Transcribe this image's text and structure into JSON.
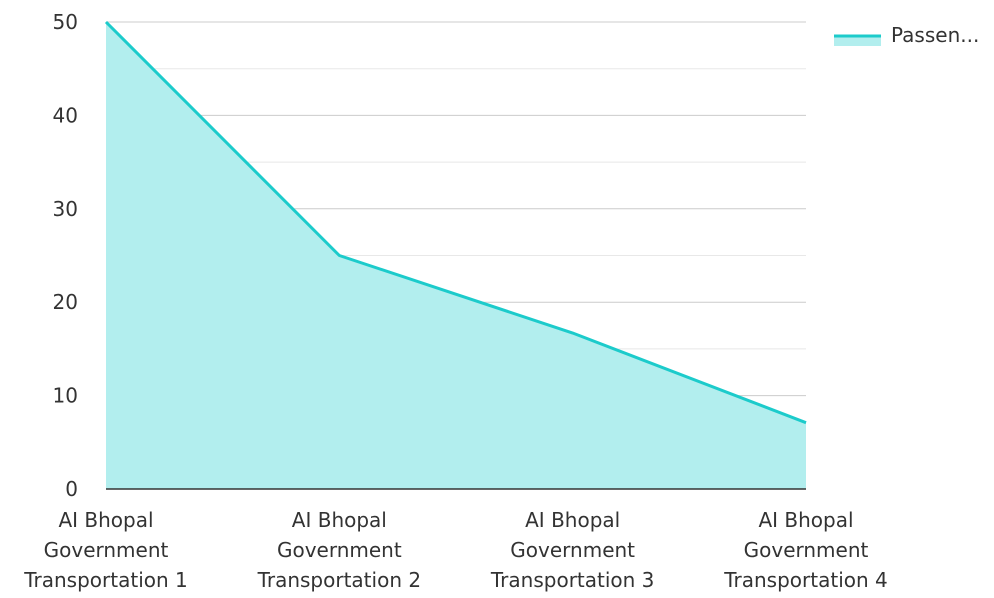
{
  "chart_data": {
    "type": "area",
    "title": "",
    "xlabel": "",
    "ylabel": "",
    "ylim": [
      0,
      50
    ],
    "yticks": [
      0,
      10,
      20,
      30,
      40,
      50
    ],
    "grid": true,
    "legend_position": "top-right",
    "categories": [
      [
        "AI Bhopal",
        "Government",
        "Transportation 1"
      ],
      [
        "AI Bhopal",
        "Government",
        "Transportation 2"
      ],
      [
        "AI Bhopal",
        "Government",
        "Transportation 3"
      ],
      [
        "AI Bhopal",
        "Government",
        "Transportation 4"
      ]
    ],
    "series": [
      {
        "name": "Passen...",
        "values": [
          50,
          25,
          16.7,
          7.1
        ],
        "line_color": "#1ccbcb",
        "fill_color": "#b2eeee"
      }
    ]
  }
}
